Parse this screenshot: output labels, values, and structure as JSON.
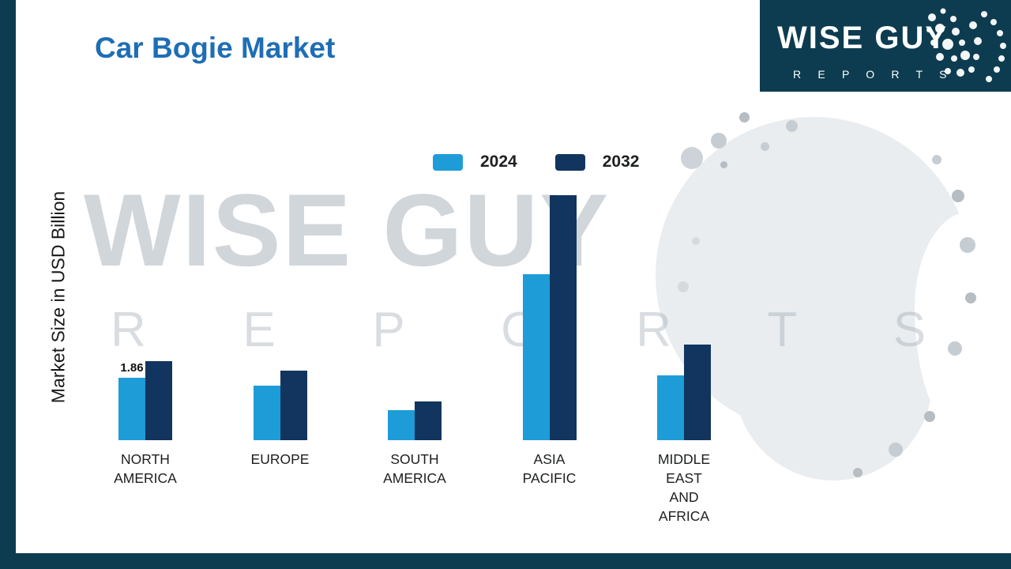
{
  "title": "Car Bogie Market",
  "logo": {
    "name_line": "WISE GUY",
    "sub_line": "R E P O R T S"
  },
  "watermark": {
    "name_line": "WISE GUY",
    "sub_line": "R E P O R T S"
  },
  "colors": {
    "accent_blue": "#1e6eb5",
    "brand_teal": "#0d3c50",
    "bar_2024": "#1e9cd8",
    "bar_2032": "#12355f"
  },
  "chart_data": {
    "type": "bar",
    "title": "Car Bogie Market",
    "ylabel": "Market Size in USD Billion",
    "xlabel": "",
    "unit": "USD Billion",
    "grid": false,
    "legend_position": "top",
    "ylim": [
      0,
      7.5
    ],
    "categories": [
      "North America",
      "Europe",
      "South America",
      "Asia Pacific",
      "Middle East and Africa"
    ],
    "category_label_lines": [
      [
        "NORTH",
        "AMERICA"
      ],
      [
        "EUROPE"
      ],
      [
        "SOUTH",
        "AMERICA"
      ],
      [
        "ASIA",
        "PACIFIC"
      ],
      [
        "MIDDLE",
        "EAST",
        "AND",
        "AFRICA"
      ]
    ],
    "series": [
      {
        "name": "2024",
        "color": "#1e9cd8",
        "values": [
          1.86,
          1.62,
          0.88,
          4.92,
          1.93
        ]
      },
      {
        "name": "2032",
        "color": "#12355f",
        "values": [
          2.35,
          2.07,
          1.15,
          7.26,
          2.84
        ]
      }
    ],
    "data_labels": [
      {
        "series_index": 0,
        "category_index": 0,
        "text": "1.86"
      }
    ]
  }
}
